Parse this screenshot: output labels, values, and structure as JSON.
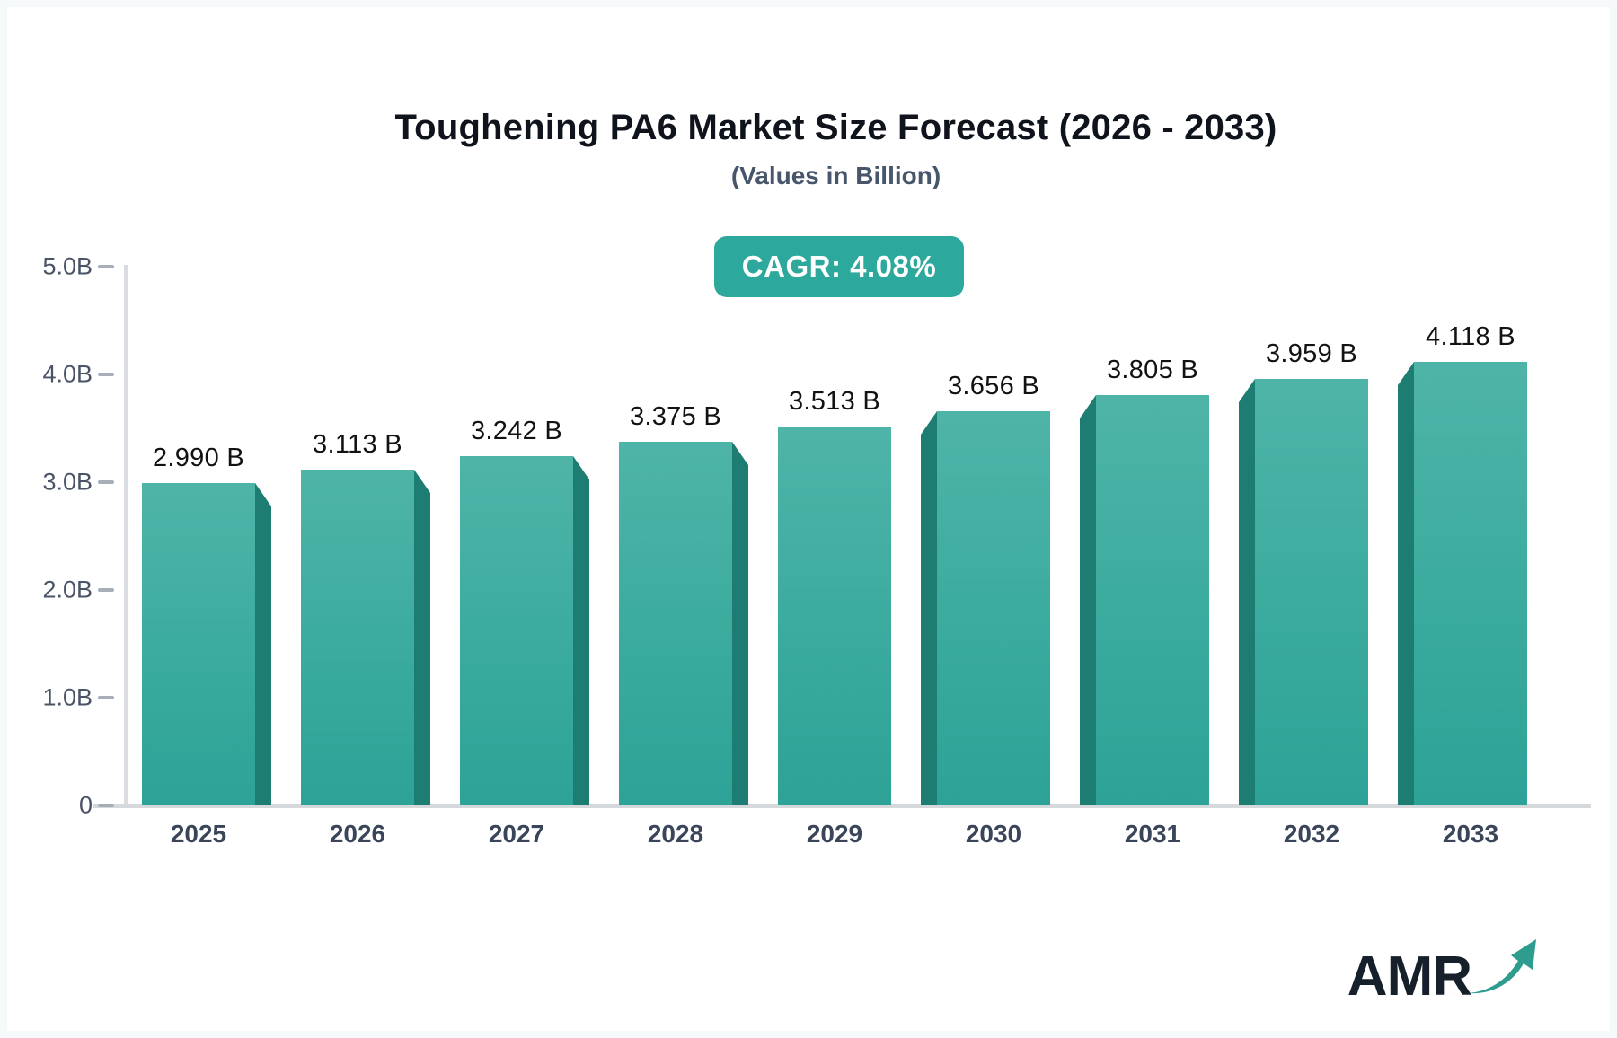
{
  "header": {
    "title": "Toughening PA6 Market Size Forecast (2026 - 2033)",
    "subtitle": "(Values in Billion)",
    "cagr_badge": "CAGR: 4.08%"
  },
  "chart_data": {
    "type": "bar",
    "title": "Toughening PA6 Market Size Forecast (2026 - 2033)",
    "subtitle": "(Values in Billion)",
    "cagr_percent": "4.08%",
    "categories": [
      "2025",
      "2026",
      "2027",
      "2028",
      "2029",
      "2030",
      "2031",
      "2032",
      "2033"
    ],
    "values": [
      2.99,
      3.113,
      3.242,
      3.375,
      3.513,
      3.656,
      3.805,
      3.959,
      4.118
    ],
    "value_labels": [
      "2.990 B",
      "3.113 B",
      "3.242 B",
      "3.375 B",
      "3.513 B",
      "3.656 B",
      "3.805 B",
      "3.959 B",
      "4.118 B"
    ],
    "y_tick_labels": [
      "5.0B",
      "4.0B",
      "3.0B",
      "2.0B",
      "1.0B",
      "0"
    ],
    "ylim": [
      0,
      5
    ],
    "grid": false,
    "legend": false,
    "unit": "Billion",
    "colors": {
      "bar_face_top": "#4fb4a8",
      "bar_face_bottom": "#2da296",
      "bar_side": "#1e7d73",
      "badge_background": "#2ca89c",
      "axis_line": "#d9dde1",
      "tick_label": "#4a5466",
      "year_label": "#3a455a",
      "value_label": "#121212"
    }
  },
  "logo": {
    "text": "AMR",
    "arrow_color": "#2f9c90"
  }
}
